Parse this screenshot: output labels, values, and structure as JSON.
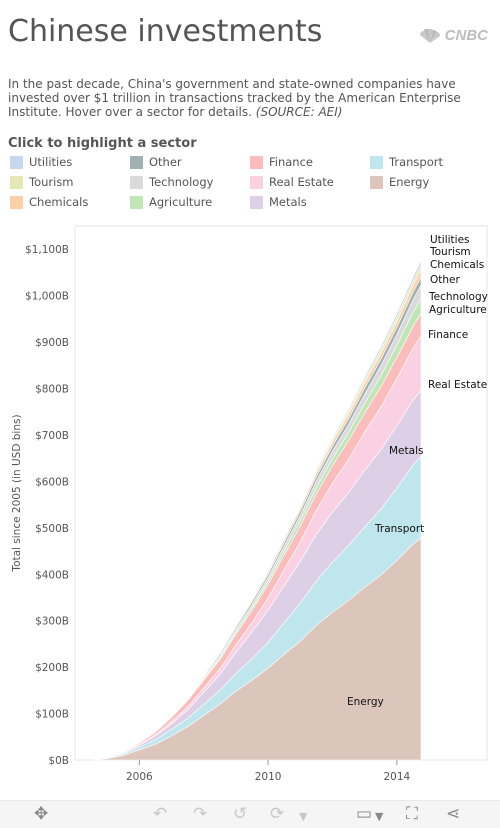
{
  "title": "Chinese investments",
  "logo_text": "CNBC",
  "description": "In the past decade, China's government and state-owned companies have invested over $1 trillion in transactions tracked by the American Enterprise Institute. Hover over a sector for details.",
  "source": "(SOURCE: AEI)",
  "legend_title": "Click to highlight a sector",
  "legend": [
    {
      "label": "Utilities",
      "color": "#c6d8ee"
    },
    {
      "label": "Other",
      "color": "#a0b0b3"
    },
    {
      "label": "Finance",
      "color": "#fbbcbc"
    },
    {
      "label": "Transport",
      "color": "#bfe6ec"
    },
    {
      "label": "Tourism",
      "color": "#e6e7b7"
    },
    {
      "label": "Technology",
      "color": "#dadada"
    },
    {
      "label": "Real Estate",
      "color": "#fad1e2"
    },
    {
      "label": "Energy",
      "color": "#dcc5bb"
    },
    {
      "label": "Chemicals",
      "color": "#fbd0a8"
    },
    {
      "label": "Agriculture",
      "color": "#bfe6b4"
    },
    {
      "label": "Metals",
      "color": "#ddd0e6"
    }
  ],
  "toolbar": {
    "icons": [
      "move-icon",
      "undo-icon",
      "redo-icon",
      "revert-icon",
      "refresh-icon",
      "dropdown-icon",
      "comment-icon",
      "fullscreen-icon",
      "share-icon"
    ]
  },
  "chart_data": {
    "type": "area",
    "stacked": true,
    "ylabel": "Total since 2005 (in USD bins)",
    "x_ticks": [
      "2006",
      "2010",
      "2014"
    ],
    "y_ticks": [
      "$0B",
      "$100B",
      "$200B",
      "$300B",
      "$400B",
      "$500B",
      "$600B",
      "$700B",
      "$800B",
      "$900B",
      "$1,000B",
      "$1,100B"
    ],
    "ylim": [
      0,
      1150
    ],
    "xlim": [
      2004.0,
      2016.8
    ],
    "x": [
      2004.6,
      2005.0,
      2005.5,
      2006.0,
      2006.5,
      2007.0,
      2007.5,
      2008.0,
      2008.5,
      2009.0,
      2009.5,
      2010.0,
      2010.5,
      2011.0,
      2011.5,
      2012.0,
      2012.5,
      2013.0,
      2013.5,
      2014.0,
      2014.5,
      2014.75
    ],
    "series": [
      {
        "name": "Energy",
        "color": "#dcc5bb",
        "values": [
          0,
          3,
          10,
          22,
          34,
          52,
          72,
          96,
          120,
          148,
          172,
          198,
          228,
          256,
          290,
          318,
          344,
          372,
          398,
          430,
          465,
          478
        ]
      },
      {
        "name": "Transport",
        "color": "#bfe6ec",
        "values": [
          0,
          1,
          3,
          6,
          10,
          14,
          18,
          24,
          30,
          38,
          46,
          55,
          68,
          82,
          96,
          108,
          118,
          130,
          142,
          156,
          170,
          176
        ]
      },
      {
        "name": "Metals",
        "color": "#ddd0e6",
        "values": [
          0,
          1,
          2,
          4,
          8,
          12,
          18,
          26,
          34,
          46,
          58,
          70,
          80,
          90,
          100,
          108,
          114,
          122,
          128,
          134,
          140,
          142
        ]
      },
      {
        "name": "Real Estate",
        "color": "#fad1e2",
        "values": [
          0,
          0,
          1,
          2,
          3,
          5,
          7,
          9,
          12,
          16,
          20,
          26,
          34,
          42,
          52,
          62,
          72,
          82,
          92,
          102,
          112,
          118
        ]
      },
      {
        "name": "Finance",
        "color": "#fbbcbc",
        "values": [
          0,
          0,
          1,
          3,
          5,
          9,
          13,
          17,
          20,
          23,
          26,
          29,
          32,
          34,
          36,
          38,
          40,
          42,
          44,
          45,
          47,
          48
        ]
      },
      {
        "name": "Agriculture",
        "color": "#bfe6b4",
        "values": [
          0,
          0,
          0,
          1,
          1,
          2,
          2,
          3,
          4,
          5,
          6,
          7,
          9,
          11,
          13,
          15,
          17,
          20,
          23,
          26,
          30,
          32
        ]
      },
      {
        "name": "Technology",
        "color": "#dadada",
        "values": [
          0,
          0,
          0,
          1,
          1,
          2,
          2,
          3,
          4,
          5,
          6,
          8,
          10,
          12,
          14,
          16,
          18,
          20,
          22,
          24,
          27,
          29
        ]
      },
      {
        "name": "Other",
        "color": "#a0b0b3",
        "values": [
          0,
          0,
          0,
          0,
          1,
          1,
          2,
          3,
          4,
          5,
          6,
          7,
          8,
          9,
          10,
          11,
          12,
          13,
          14,
          15,
          16,
          17
        ]
      },
      {
        "name": "Chemicals",
        "color": "#fbd0a8",
        "values": [
          0,
          0,
          0,
          0,
          0,
          1,
          1,
          1,
          2,
          3,
          4,
          5,
          6,
          7,
          8,
          9,
          10,
          11,
          12,
          13,
          14,
          15
        ]
      },
      {
        "name": "Tourism",
        "color": "#e6e7b7",
        "values": [
          0,
          0,
          0,
          0,
          0,
          0,
          0,
          1,
          1,
          1,
          2,
          2,
          3,
          3,
          4,
          5,
          6,
          7,
          8,
          9,
          10,
          11
        ]
      },
      {
        "name": "Utilities",
        "color": "#c6d8ee",
        "values": [
          0,
          0,
          0,
          0,
          0,
          0,
          1,
          1,
          1,
          2,
          2,
          2,
          3,
          3,
          4,
          4,
          5,
          6,
          7,
          8,
          9,
          10
        ]
      }
    ],
    "end_labels": [
      "Utilities",
      "Tourism",
      "Chemicals",
      "Other",
      "Technology",
      "Agriculture",
      "Finance",
      "Real Estate",
      "Metals",
      "Transport",
      "Energy"
    ],
    "grid": false
  }
}
